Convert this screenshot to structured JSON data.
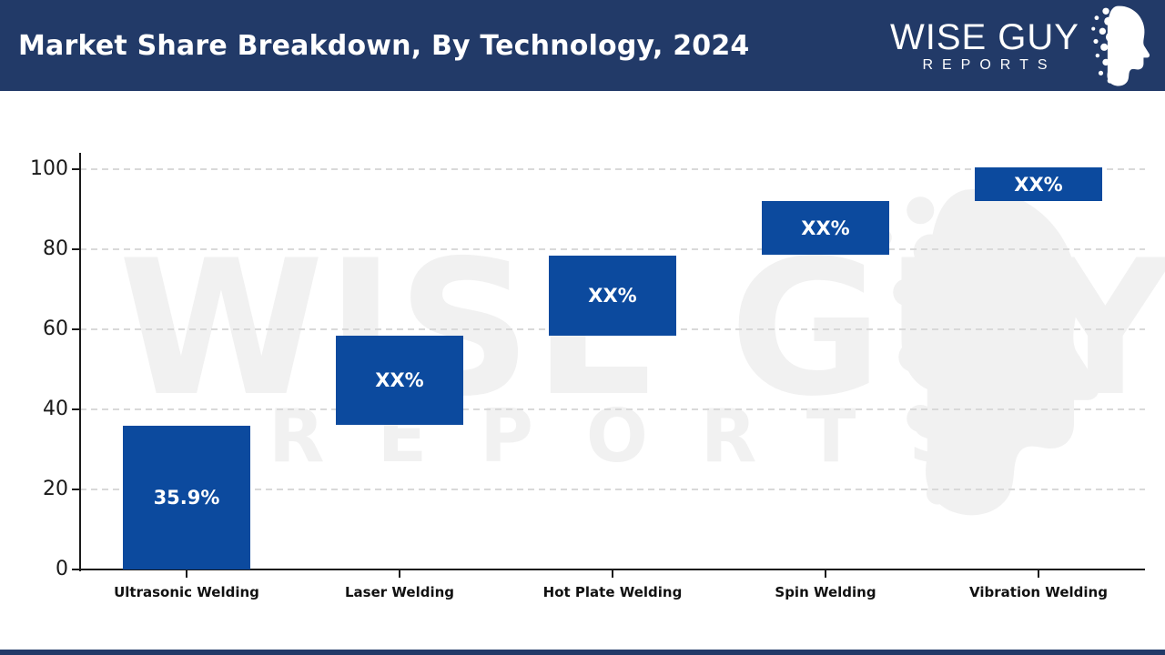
{
  "header": {
    "title": "Market Share Breakdown, By Technology, 2024",
    "logo": {
      "primary": "WISE GUY",
      "secondary": "REPORTS"
    }
  },
  "watermark": {
    "primary": "WISE GUY",
    "secondary": "REPORTS"
  },
  "colors": {
    "header_bg": "#223A68",
    "footer_bg": "#223A68",
    "bar": "#0C4A9E",
    "bar_label": "#FFFFFF",
    "grid": "#D9D9D9",
    "axis": "#1A1A1A",
    "title_text": "#FFFFFF",
    "watermark": "#F1F1F1"
  },
  "chart_data": {
    "type": "bar",
    "variant": "floating-waterfall",
    "title": "Market Share Breakdown, By Technology, 2024",
    "xlabel": "",
    "ylabel": "",
    "legend": "none",
    "grid": "horizontal-dashed",
    "yticks": [
      0,
      20,
      40,
      60,
      80,
      100
    ],
    "ylim": [
      0,
      104
    ],
    "categories": [
      "Ultrasonic Welding",
      "Laser Welding",
      "Hot Plate Welding",
      "Spin Welding",
      "Vibration Welding"
    ],
    "segments": [
      {
        "category": "Ultrasonic Welding",
        "start": 0,
        "end": 35.9,
        "label": "35.9%"
      },
      {
        "category": "Laser Welding",
        "start": 36.1,
        "end": 58.4,
        "label": "XX%"
      },
      {
        "category": "Hot Plate Welding",
        "start": 58.5,
        "end": 78.4,
        "label": "XX%"
      },
      {
        "category": "Spin Welding",
        "start": 78.6,
        "end": 92.0,
        "label": "XX%"
      },
      {
        "category": "Vibration Welding",
        "start": 92.0,
        "end": 100.4,
        "label": "XX%"
      }
    ]
  }
}
